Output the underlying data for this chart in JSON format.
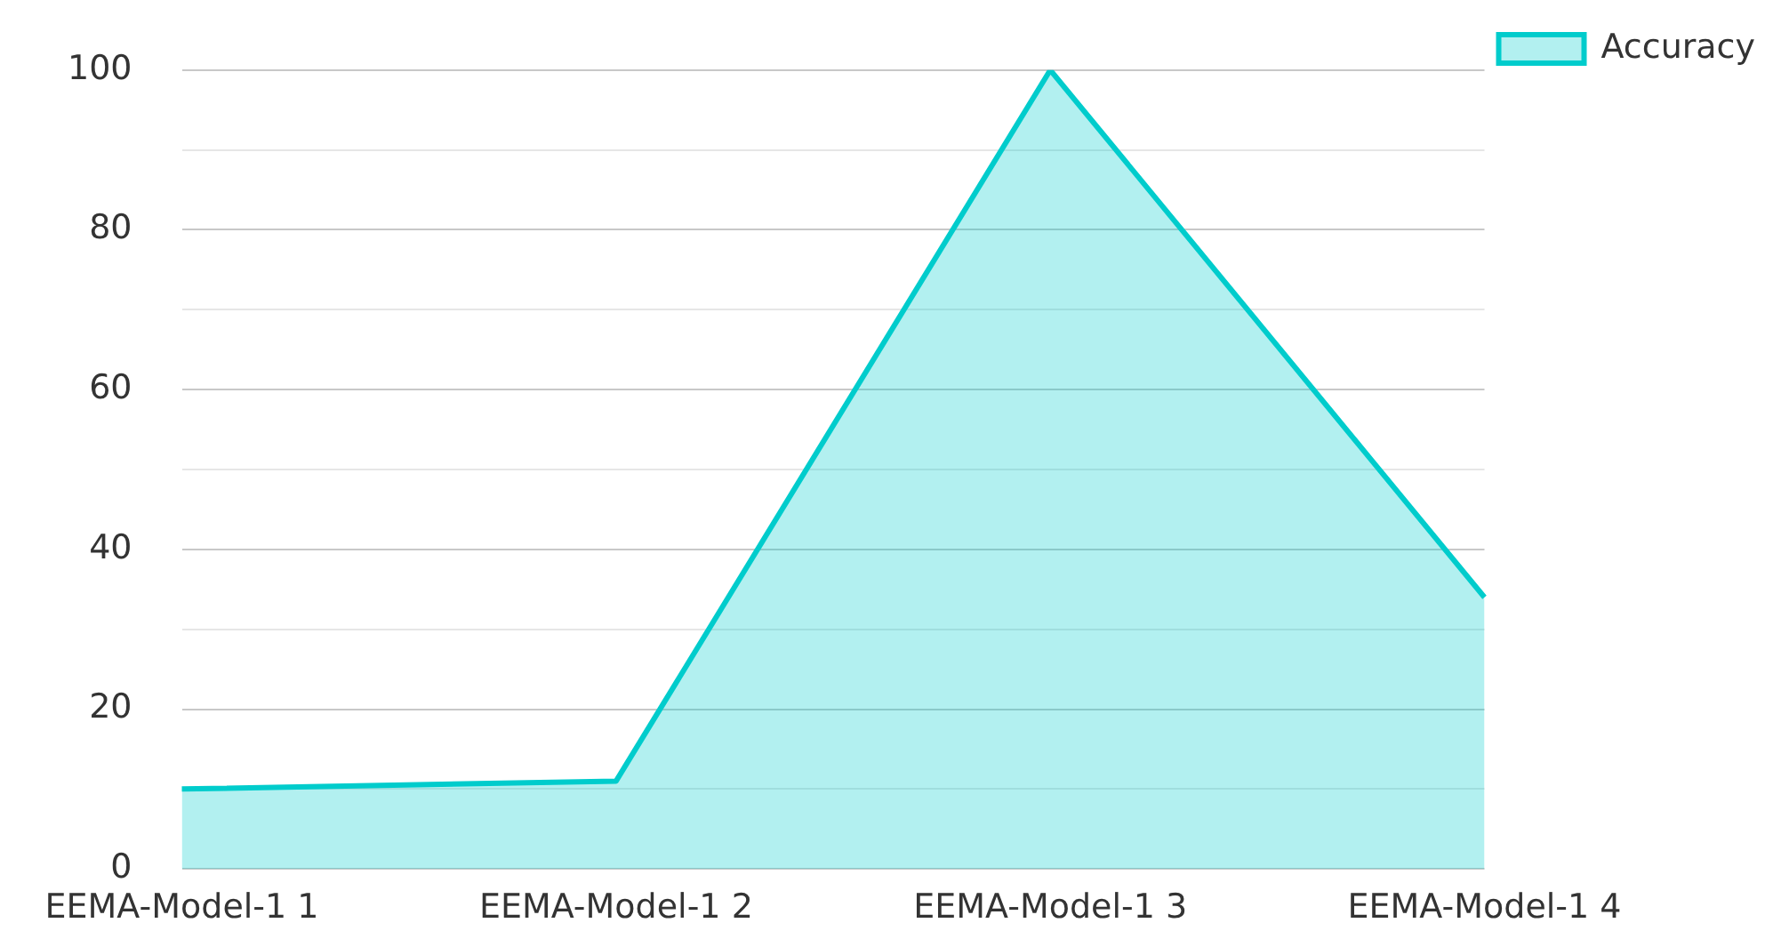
{
  "chart_data": {
    "type": "area",
    "categories": [
      "EEMA-Model-1 1",
      "EEMA-Model-1 2",
      "EEMA-Model-1 3",
      "EEMA-Model-1 4"
    ],
    "series": [
      {
        "name": "Accuracy",
        "color": "#00cccc",
        "values": [
          10,
          11,
          100,
          34
        ]
      }
    ],
    "ylim": [
      0,
      100
    ],
    "yticks": [
      0,
      {
        "value": 10,
        "label": null
      },
      20,
      {
        "value": 30,
        "label": null
      },
      40,
      {
        "value": 50,
        "label": null
      },
      60,
      {
        "value": 70,
        "label": null
      },
      80,
      {
        "value": 90,
        "label": null
      },
      100
    ],
    "grid": "y",
    "legend": "top right",
    "marker": "none",
    "line_style": "solid"
  }
}
